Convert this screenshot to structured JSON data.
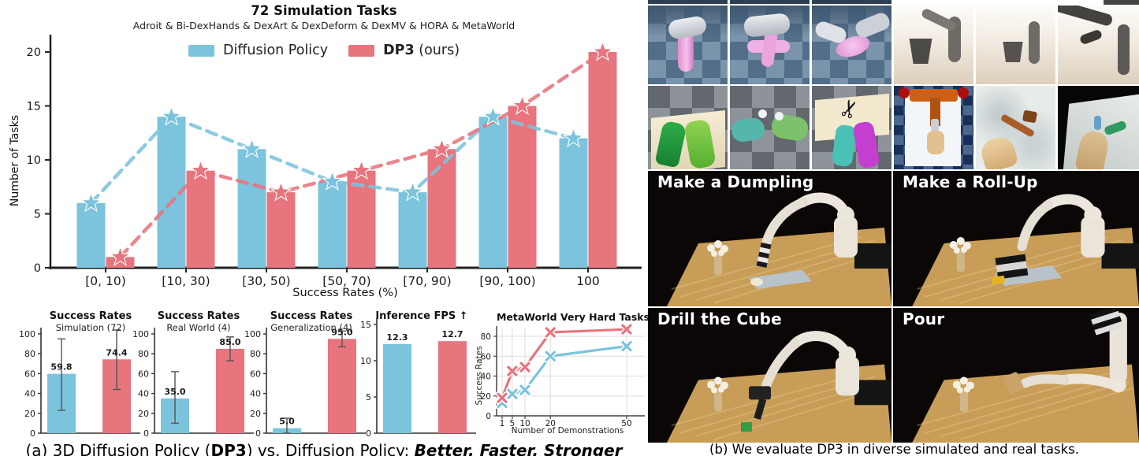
{
  "colors": {
    "diffusion_policy": "#7cc4dd",
    "dp3": "#e8747e",
    "error_bar": "#555555",
    "axis": "#222222",
    "grid": "#dddddd"
  },
  "legend": {
    "diffusion_policy": "Diffusion Policy",
    "dp3_bold": "DP3",
    "dp3_rest": " (ours)"
  },
  "chart_data": [
    {
      "id": "task-count-by-success-rate",
      "type": "bar",
      "title": "72 Simulation Tasks",
      "subtitle": "Adroit & Bi-DexHands & DexArt & DexDeform & DexMV & HORA & MetaWorld",
      "xlabel": "Success Rates (%)",
      "ylabel": "Number of Tasks",
      "categories": [
        "[0, 10)",
        "[10, 30)",
        "[30, 50)",
        "[50, 70)",
        "[70, 90)",
        "[90, 100)",
        "100"
      ],
      "yticks": [
        0,
        5,
        10,
        15,
        20
      ],
      "ylim": [
        0,
        21
      ],
      "legend_position": "top",
      "marker": "star",
      "trend_lines": "dashed",
      "series": [
        {
          "name": "Diffusion Policy",
          "values": [
            6,
            14,
            11,
            8,
            7,
            14,
            12
          ]
        },
        {
          "name": "DP3 (ours)",
          "values": [
            1,
            9,
            7,
            9,
            11,
            15,
            20
          ]
        }
      ]
    },
    {
      "id": "success-rates-simulation",
      "type": "bar",
      "title": "Success Rates",
      "subtitle": "Simulation (72)",
      "yticks": [
        0,
        20,
        40,
        60,
        80,
        100
      ],
      "ylim": [
        0,
        110
      ],
      "bars": [
        {
          "series": "Diffusion Policy",
          "value": 59.8,
          "label": "59.8",
          "err_low": 23,
          "err_high": 95
        },
        {
          "series": "DP3 (ours)",
          "value": 74.4,
          "label": "74.4",
          "err_low": 44,
          "err_high": 104
        }
      ]
    },
    {
      "id": "success-rates-real-world",
      "type": "bar",
      "title": "Success Rates",
      "subtitle": "Real World (4)",
      "yticks": [
        0,
        20,
        40,
        60,
        80,
        100
      ],
      "ylim": [
        0,
        110
      ],
      "bars": [
        {
          "series": "Diffusion Policy",
          "value": 35.0,
          "label": "35.0",
          "err_low": 10,
          "err_high": 62
        },
        {
          "series": "DP3 (ours)",
          "value": 85.0,
          "label": "85.0",
          "err_low": 73,
          "err_high": 97
        }
      ]
    },
    {
      "id": "success-rates-generalization",
      "type": "bar",
      "title": "Success Rates",
      "subtitle": "Generalization (4)",
      "yticks": [
        0,
        20,
        40,
        60,
        80,
        100
      ],
      "ylim": [
        0,
        110
      ],
      "bars": [
        {
          "series": "Diffusion Policy",
          "value": 5.0,
          "label": "5.0",
          "err_low": 0,
          "err_high": 15
        },
        {
          "series": "DP3 (ours)",
          "value": 95.0,
          "label": "95.0",
          "err_low": 87,
          "err_high": 103
        }
      ]
    },
    {
      "id": "inference-fps",
      "type": "bar",
      "title": "Inference FPS ↑",
      "subtitle": "",
      "yticks": [
        0,
        5,
        10,
        15
      ],
      "ylim": [
        0,
        15.5
      ],
      "bars": [
        {
          "series": "Diffusion Policy",
          "value": 12.3,
          "label": "12.3"
        },
        {
          "series": "DP3 (ours)",
          "value": 12.7,
          "label": "12.7"
        }
      ]
    },
    {
      "id": "metaworld-very-hard",
      "type": "line",
      "title": "MetaWorld Very Hard Tasks",
      "xlabel": "Number of Demonstrations",
      "ylabel": "Success Rates",
      "xticks": [
        1,
        5,
        10,
        20,
        50
      ],
      "yticks": [
        0,
        20,
        40,
        60,
        80
      ],
      "grid": true,
      "marker": "x",
      "series": [
        {
          "name": "Diffusion Policy",
          "x": [
            1,
            5,
            10,
            20,
            50
          ],
          "values": [
            13,
            22,
            26,
            60,
            70
          ]
        },
        {
          "name": "DP3 (ours)",
          "x": [
            1,
            5,
            10,
            20,
            50
          ],
          "values": [
            18,
            45,
            49,
            84,
            87
          ]
        }
      ]
    }
  ],
  "captions": {
    "a": {
      "seg1": "(a) 3D Diffusion Policy (",
      "seg2": "DP3",
      "seg3": ") vs. Diffusion Policy: ",
      "seg4": "Better, Faster, Stronger"
    },
    "b": "(b) We evaluate DP3 in diverse simulated and real tasks."
  },
  "right_panel": {
    "photos": [
      {
        "label": "Make a Dumpling"
      },
      {
        "label": "Make a Roll-Up"
      },
      {
        "label": "Drill the Cube"
      },
      {
        "label": "Pour"
      }
    ]
  },
  "icons": {
    "scissors": "✂"
  }
}
